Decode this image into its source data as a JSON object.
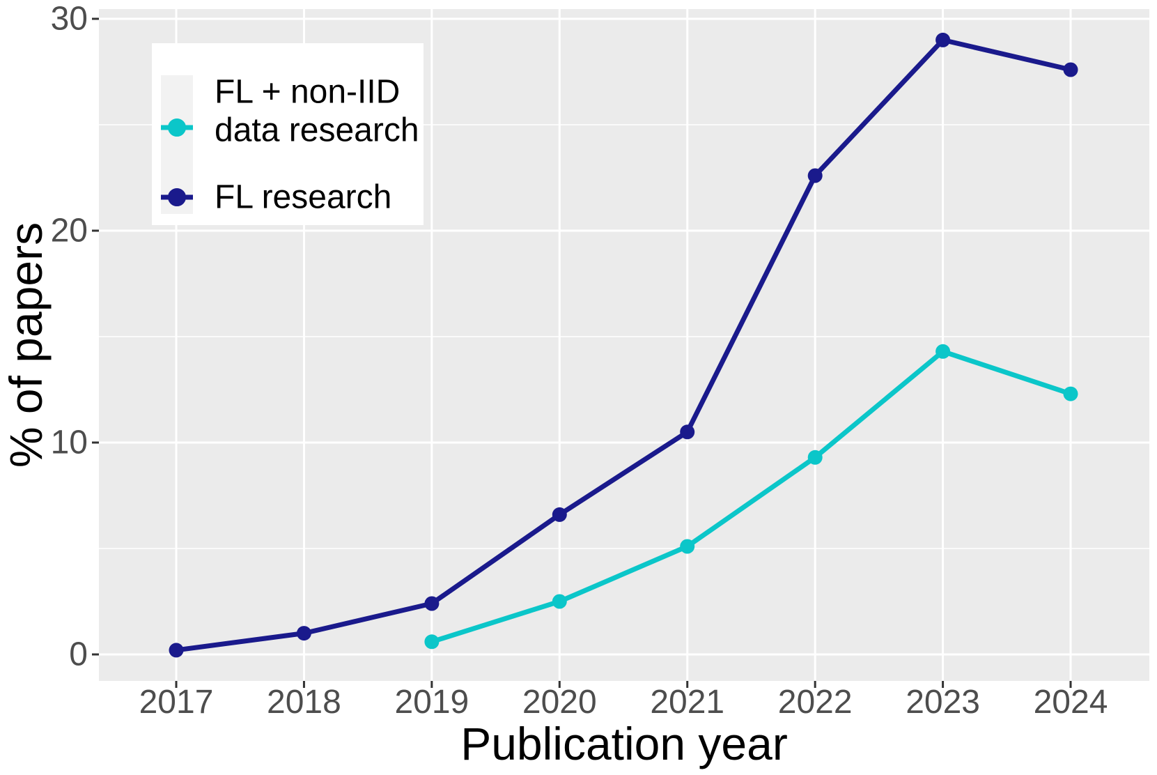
{
  "chart_data": {
    "type": "line",
    "title": "",
    "xlabel": "Publication year",
    "ylabel": "% of papers",
    "categories": [
      "2017",
      "2018",
      "2019",
      "2020",
      "2021",
      "2022",
      "2023",
      "2024"
    ],
    "y_major_ticks": [
      0,
      10,
      20,
      30
    ],
    "y_minor_gridlines": [
      5,
      15,
      25
    ],
    "ylim": [
      -1.25,
      30.5
    ],
    "grid": "white major+minor horizontal and major vertical gridlines on grey panel",
    "legend_position": "inside top-left",
    "series": [
      {
        "name": "FL + non-IID data research",
        "name_lines": [
          "FL + non-IID",
          "data research"
        ],
        "color": "#0BC6C9",
        "values": [
          null,
          null,
          0.6,
          2.5,
          5.1,
          9.3,
          14.3,
          12.3
        ]
      },
      {
        "name": "FL research",
        "name_lines": [
          "FL research"
        ],
        "color": "#1A1A8C",
        "values": [
          0.2,
          1.0,
          2.4,
          6.6,
          10.5,
          22.6,
          29.0,
          27.6
        ]
      }
    ]
  },
  "style": {
    "page_bg": "#FFFFFF",
    "panel_bg": "#EBEBEB",
    "gridline_color": "#FFFFFF",
    "legend_bg": "#FFFFFF",
    "legend_key_bg": "#F2F2F2",
    "tick_label_color": "#4D4D4D",
    "axis_title_color": "#000000",
    "tick_mark_color": "#333333"
  }
}
